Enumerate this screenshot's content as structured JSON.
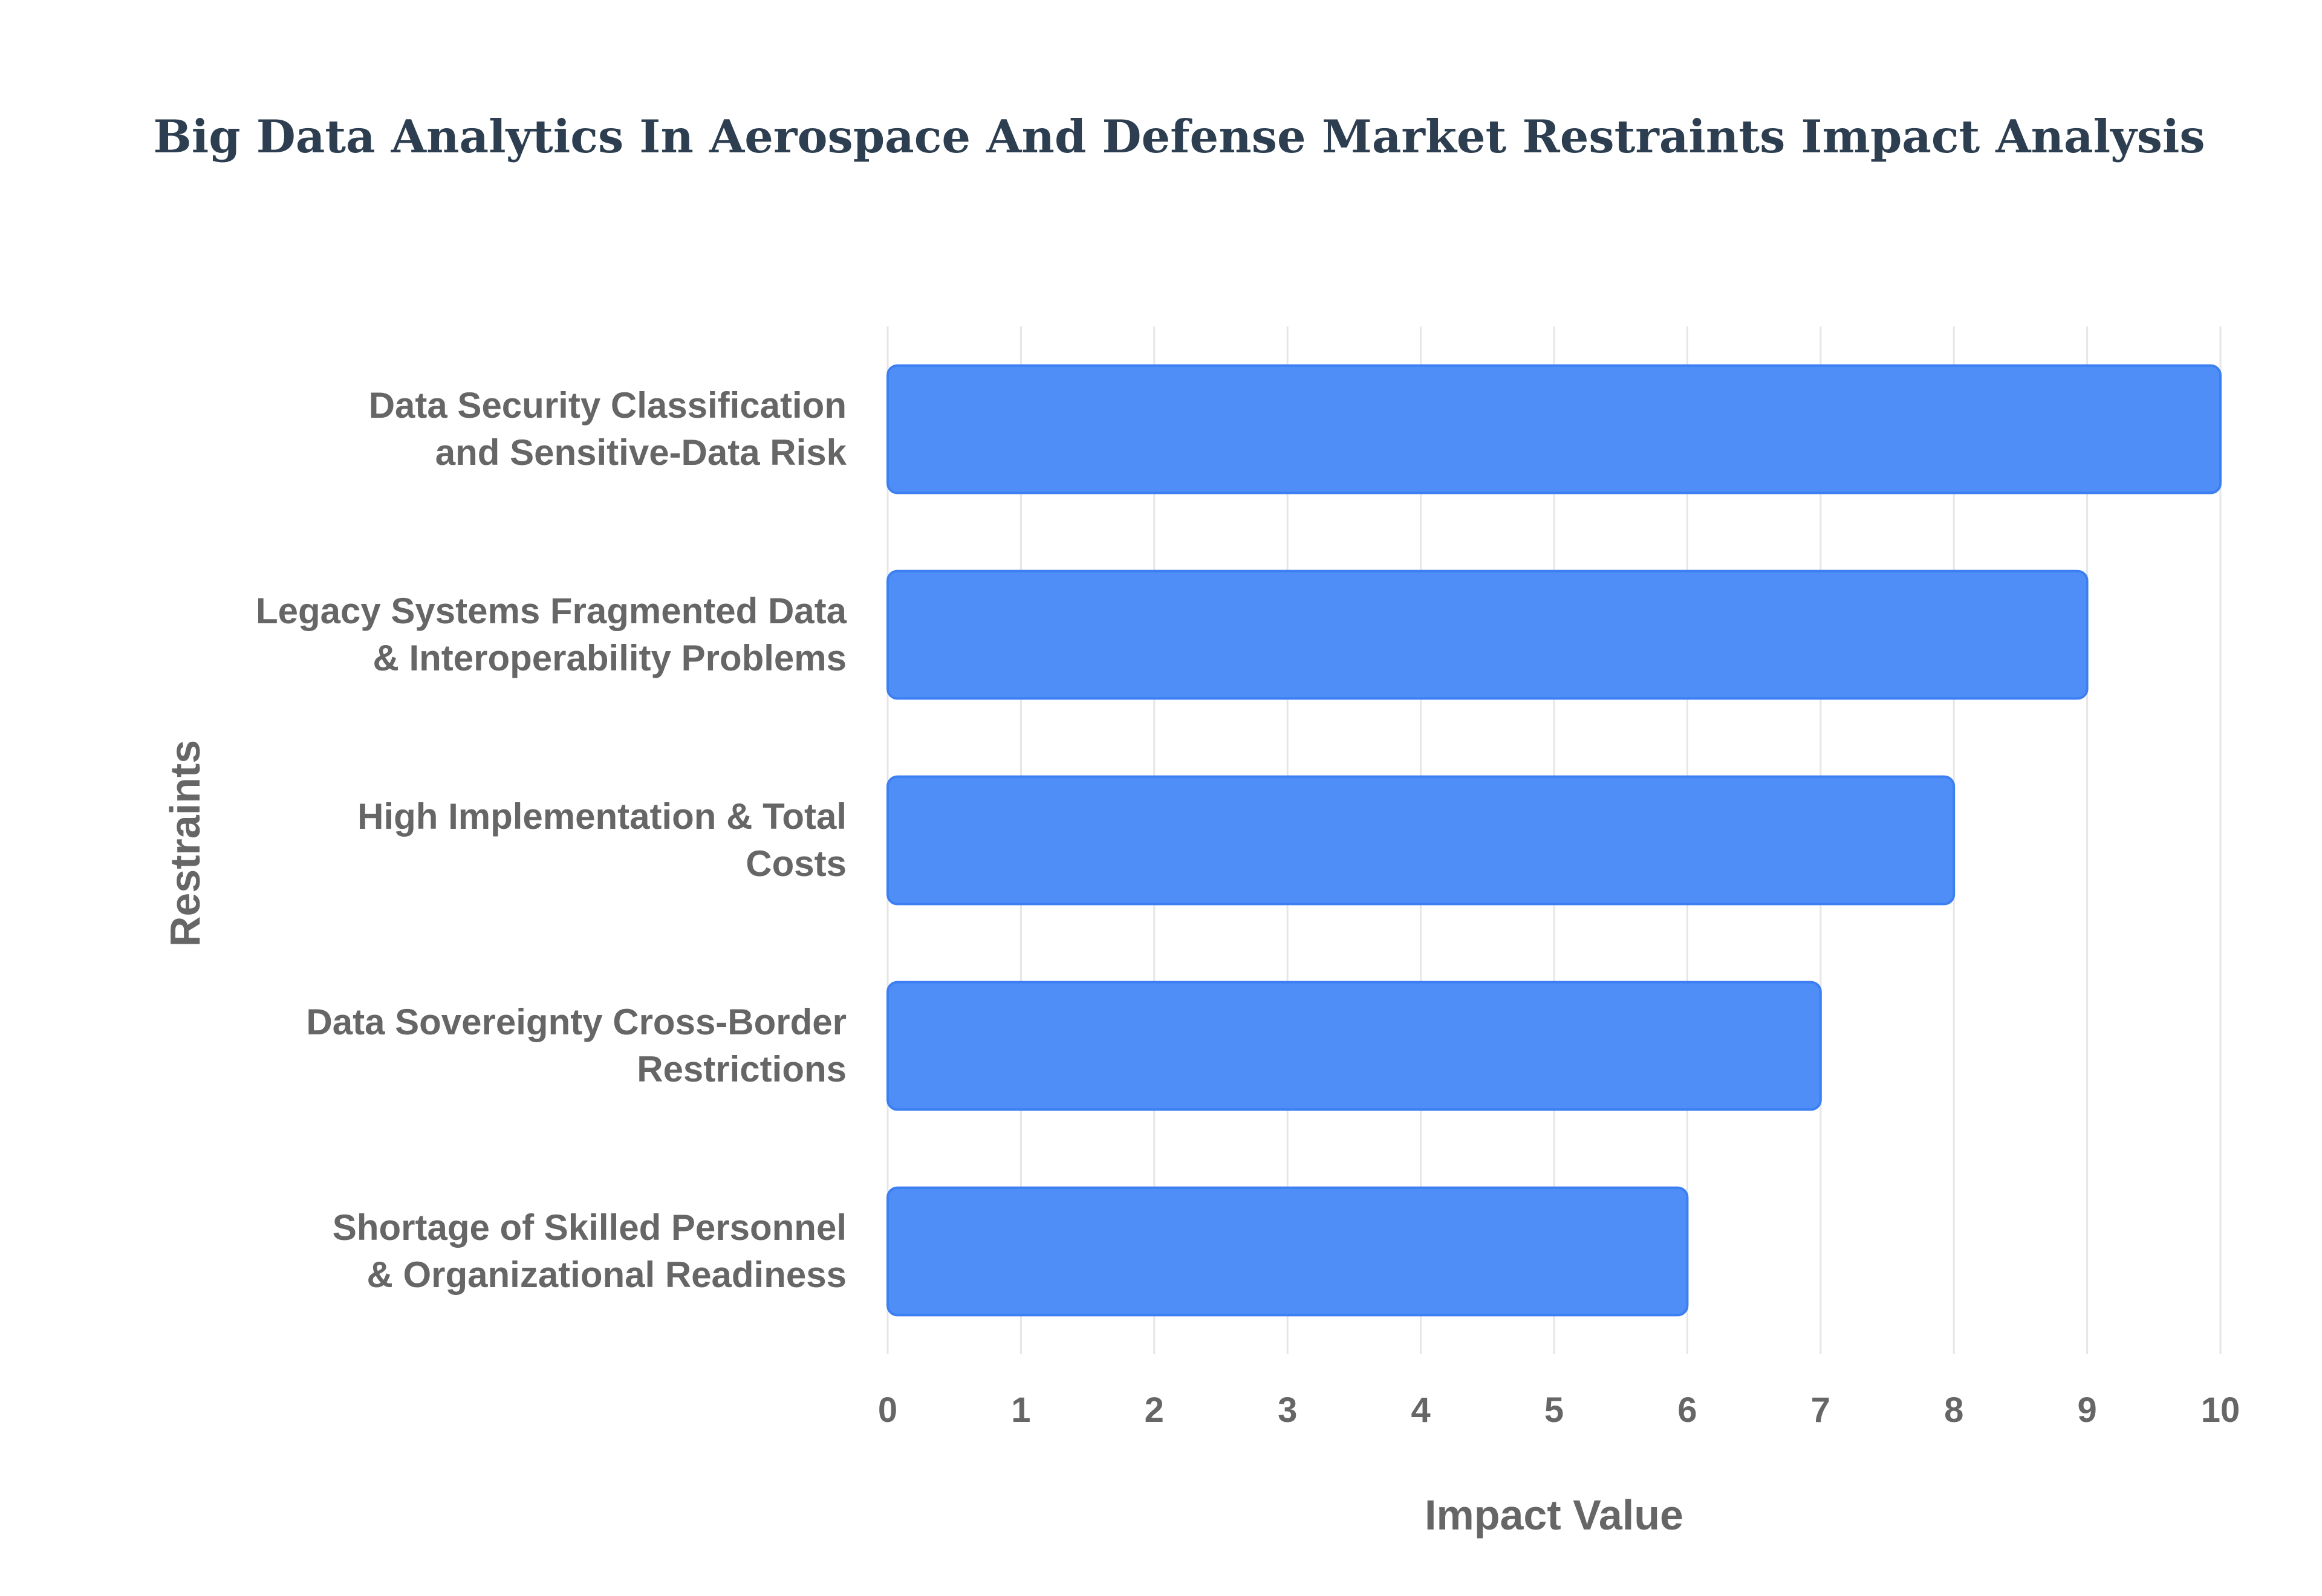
{
  "chart_data": {
    "type": "bar",
    "orientation": "horizontal",
    "title": "Big Data Analytics In Aerospace And Defense Market Restraints Impact Analysis",
    "xlabel": "Impact Value",
    "ylabel": "Restraints",
    "categories": [
      [
        "Data Security Classification",
        "and Sensitive-Data Risk"
      ],
      [
        "Legacy Systems Fragmented Data",
        "& Interoperability Problems"
      ],
      [
        "High Implementation & Total",
        "Costs"
      ],
      [
        "Data Sovereignty Cross-Border",
        "Restrictions"
      ],
      [
        "Shortage of Skilled Personnel",
        "& Organizational Readiness"
      ]
    ],
    "values": [
      10,
      9,
      8,
      7,
      6
    ],
    "xlim": [
      0,
      10
    ],
    "xticks": [
      "0",
      "1",
      "2",
      "3",
      "4",
      "5",
      "6",
      "7",
      "8",
      "9",
      "10"
    ],
    "grid": true,
    "legend": "none",
    "colors": {
      "bar_fill": "#4f8ef7",
      "bar_stroke": "#3b7ff2",
      "title": "#2c3e50",
      "text": "#666666",
      "grid": "#e6e6e6"
    }
  }
}
